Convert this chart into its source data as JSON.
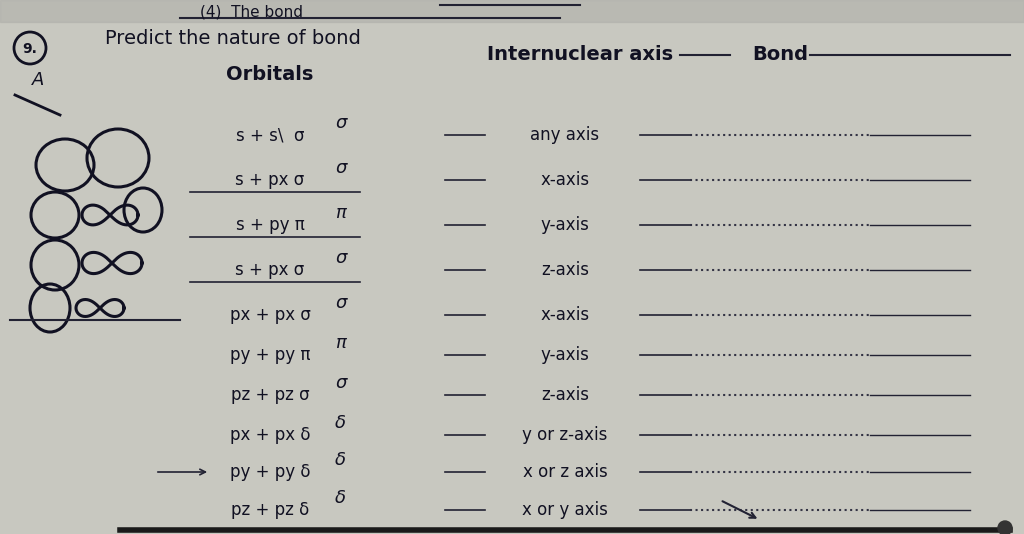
{
  "background_color": "#c8c8c0",
  "heading": "Predict the nature of bond",
  "col1_header": "Orbitals",
  "col2_header": "Internuclear axis",
  "col3_header": "Bond",
  "orbital_labels": [
    "s + s\\  σ",
    "s + px σ",
    "s + py π",
    "s + px σ",
    "px + px σ",
    "py + py π",
    "pz + pz σ",
    "px + px δ",
    "py + py δ",
    "pz + pz δ"
  ],
  "axis_labels": [
    "any axis",
    "x-axis",
    "y-axis",
    "z-axis",
    "x-axis",
    "y-axis",
    "z-axis",
    "y or z-axis",
    "x or z axis",
    "x or y axis"
  ],
  "text_color": "#111122",
  "line_color": "#222233",
  "dotted_color": "#333344",
  "q_num": "9.",
  "top_text": "(4)  The bond",
  "underline_rows": [
    1,
    2,
    3
  ],
  "arrow_row": 8
}
